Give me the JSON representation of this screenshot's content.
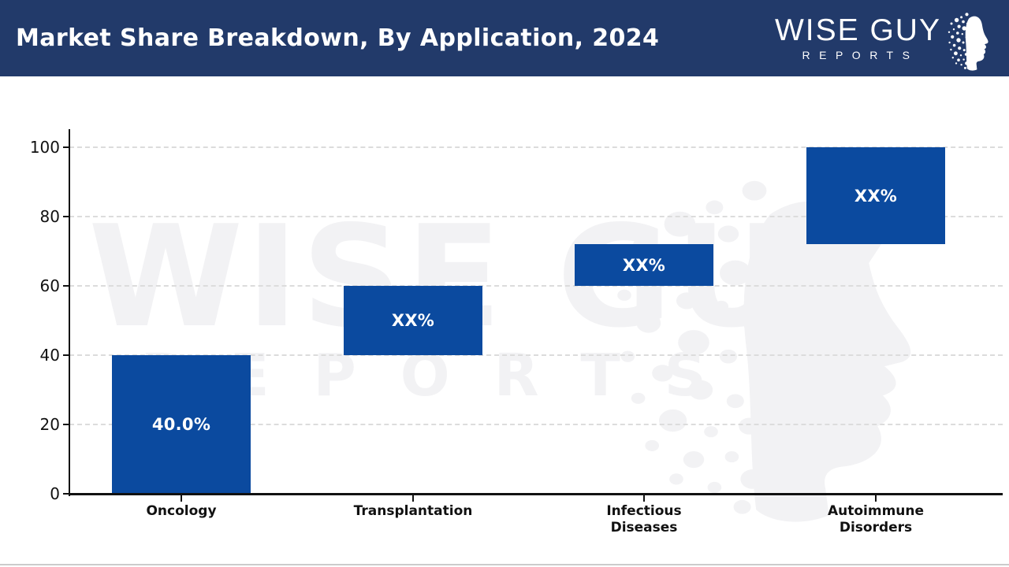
{
  "header": {
    "title": "Market Share Breakdown, By Application, 2024",
    "logo": {
      "line1": "WISE GUY",
      "line2": "REPORTS"
    }
  },
  "watermark": {
    "line1": "WISE GUY",
    "line2": "REPORTS"
  },
  "chart_data": {
    "type": "bar",
    "subtype": "waterfall",
    "title": "Market Share Breakdown, By Application, 2024",
    "categories": [
      "Oncology",
      "Transplantation",
      "Infectious Diseases",
      "Autoimmune Disorders"
    ],
    "category_lines": [
      [
        "Oncology"
      ],
      [
        "Transplantation"
      ],
      [
        "Infectious",
        "Diseases"
      ],
      [
        "Autoimmune",
        "Disorders"
      ]
    ],
    "segments": [
      {
        "category": "Oncology",
        "start": 0,
        "end": 40,
        "label": "40.0%"
      },
      {
        "category": "Transplantation",
        "start": 40,
        "end": 60,
        "label": "XX%"
      },
      {
        "category": "Infectious Diseases",
        "start": 60,
        "end": 72,
        "label": "XX%"
      },
      {
        "category": "Autoimmune Disorders",
        "start": 72,
        "end": 100,
        "label": "XX%"
      }
    ],
    "ylim": [
      0,
      100
    ],
    "yticks": [
      0,
      20,
      40,
      60,
      80,
      100
    ],
    "xlabel": "",
    "ylabel": "",
    "legend": "none",
    "grid": "horizontal-dashed",
    "colors": {
      "bar": "#0B4A9F",
      "bar_label": "#FFFFFF",
      "header_bg": "#223A6A",
      "axis": "#111111",
      "gridline": "#DCDCDC",
      "watermark": "#F2F2F4"
    }
  }
}
